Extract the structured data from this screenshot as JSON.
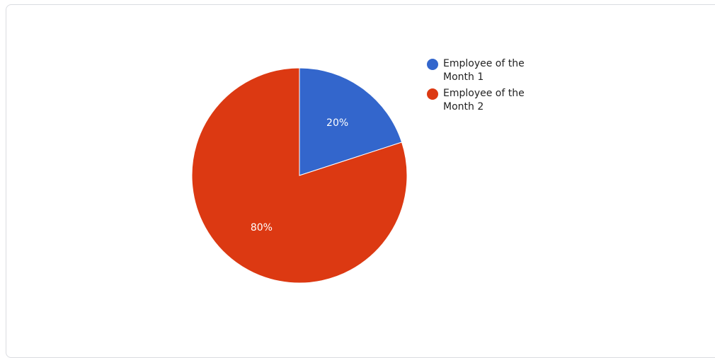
{
  "chart_data": {
    "type": "pie",
    "slices": [
      {
        "label": "Employee of the Month 1",
        "value": 20,
        "display": "20%",
        "color": "#3366cc"
      },
      {
        "label": "Employee of the Month 2",
        "value": 80,
        "display": "80%",
        "color": "#dc3912"
      }
    ],
    "legend_position": "right"
  }
}
